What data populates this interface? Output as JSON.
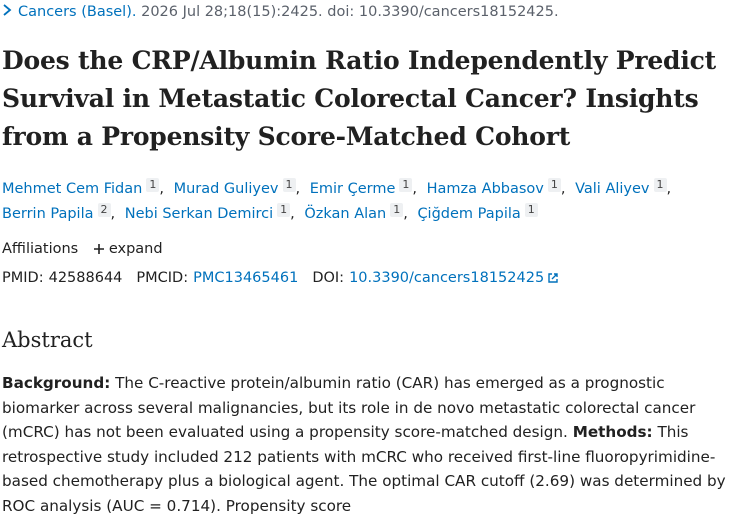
{
  "citation": {
    "journal": "Cancers (Basel).",
    "details": "2026 Jul 28;18(15):2425. doi: 10.3390/cancers18152425."
  },
  "title": "Does the CRP/Albumin Ratio Independently Predict Survival in Metastatic Colorectal Cancer? Insights from a Propensity Score-Matched Cohort",
  "authors": [
    {
      "name": "Mehmet Cem Fidan",
      "affiliation": "1"
    },
    {
      "name": "Murad Guliyev",
      "affiliation": "1"
    },
    {
      "name": "Emir Çerme",
      "affiliation": "1"
    },
    {
      "name": "Hamza Abbasov",
      "affiliation": "1"
    },
    {
      "name": "Vali Aliyev",
      "affiliation": "1"
    },
    {
      "name": "Berrin Papila",
      "affiliation": "2"
    },
    {
      "name": "Nebi Serkan Demirci",
      "affiliation": "1"
    },
    {
      "name": "Özkan Alan",
      "affiliation": "1"
    },
    {
      "name": "Çiğdem Papila",
      "affiliation": "1"
    }
  ],
  "affiliations": {
    "label": "Affiliations",
    "toggle": "expand"
  },
  "identifiers": [
    {
      "label": "PMID:",
      "value": "42588644"
    },
    {
      "label": "PMCID:",
      "value": "PMC13465461"
    },
    {
      "label": "DOI:",
      "value": "10.3390/cancers18152425"
    }
  ],
  "abstract": {
    "heading": "Abstract",
    "sections": [
      {
        "label": "Background:",
        "text": "The C-reactive protein/albumin ratio (CAR) has emerged as a prognostic biomarker across several malignancies, but its role in de novo metastatic colorectal cancer (mCRC) has not been evaluated using a propensity score-matched design."
      },
      {
        "label": "Methods:",
        "text": "This retrospective study included 212 patients with mCRC who received first-line fluoropyrimidine-based chemotherapy plus a biological agent. The optimal CAR cutoff (2.69) was determined by ROC analysis (AUC = 0.714). Propensity score"
      }
    ]
  }
}
